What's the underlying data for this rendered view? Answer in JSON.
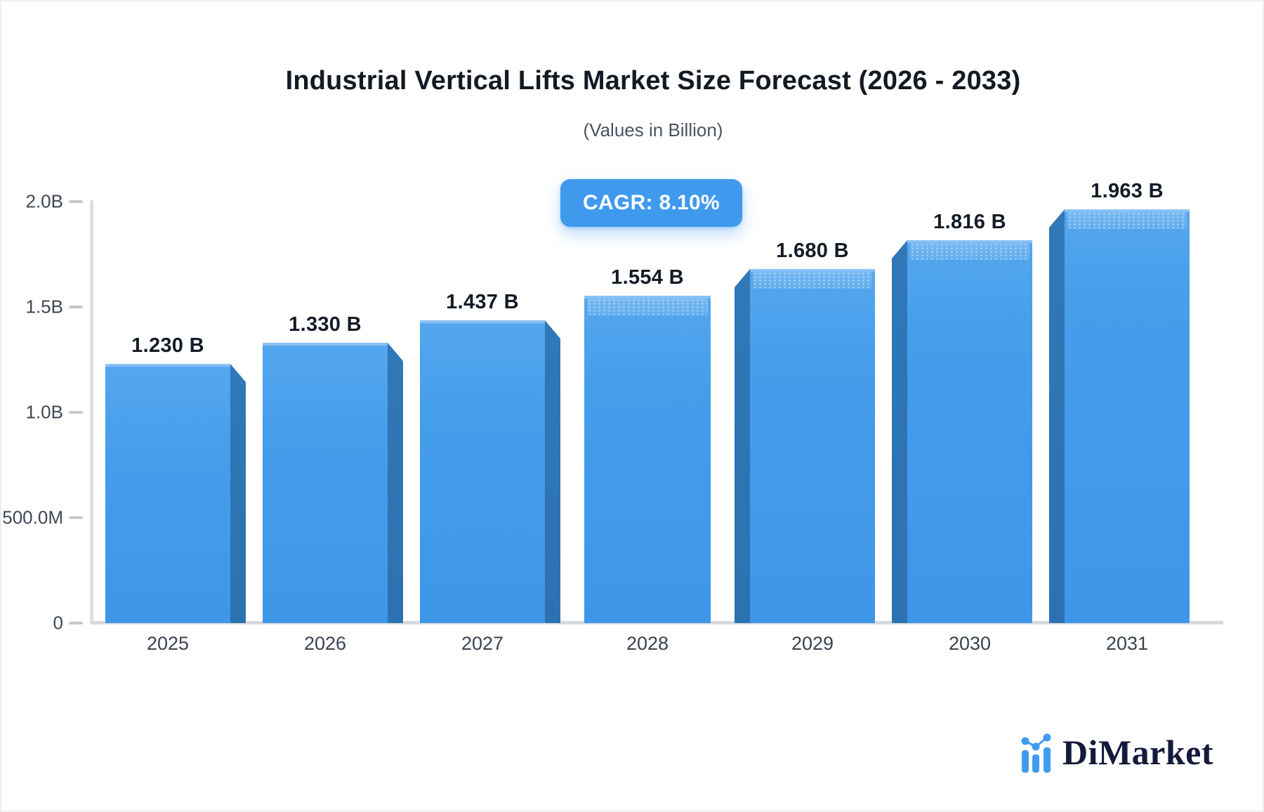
{
  "title": "Industrial Vertical Lifts Market Size Forecast (2026 - 2033)",
  "subtitle": "(Values in Billion)",
  "cagr_badge": "CAGR: 8.10%",
  "brand": {
    "name": "DiMarket",
    "icon": "bar-chart-trend-icon"
  },
  "colors": {
    "bar_face": "#459eea",
    "bar_side": "#2e74b3",
    "badge_bg": "#3f9aed",
    "axis_gray": "#d6dade",
    "title_text": "#131a24",
    "logo_navy": "#141a3b",
    "logo_blue": "#3e9bf0"
  },
  "chart_data": {
    "type": "bar",
    "title": "Industrial Vertical Lifts Market Size Forecast (2026 - 2033)",
    "subtitle": "(Values in Billion)",
    "xlabel": "",
    "ylabel": "",
    "categories": [
      "2025",
      "2026",
      "2027",
      "2028",
      "2029",
      "2030",
      "2031"
    ],
    "values": [
      1.23,
      1.33,
      1.437,
      1.554,
      1.68,
      1.816,
      1.963
    ],
    "bar_labels": [
      "1.230 B",
      "1.330 B",
      "1.437 B",
      "1.554 B",
      "1.680 B",
      "1.816 B",
      "1.963 B"
    ],
    "y_ticks": [
      {
        "label": "2.0B",
        "value": 2.0
      },
      {
        "label": "1.5B",
        "value": 1.5
      },
      {
        "label": "1.0B",
        "value": 1.0
      },
      {
        "label": "500.0M",
        "value": 0.5
      },
      {
        "label": "0",
        "value": 0.0
      }
    ],
    "ylim": [
      0,
      2.0
    ],
    "grid": false,
    "legend": false,
    "annotations": [
      "CAGR: 8.10%"
    ]
  }
}
